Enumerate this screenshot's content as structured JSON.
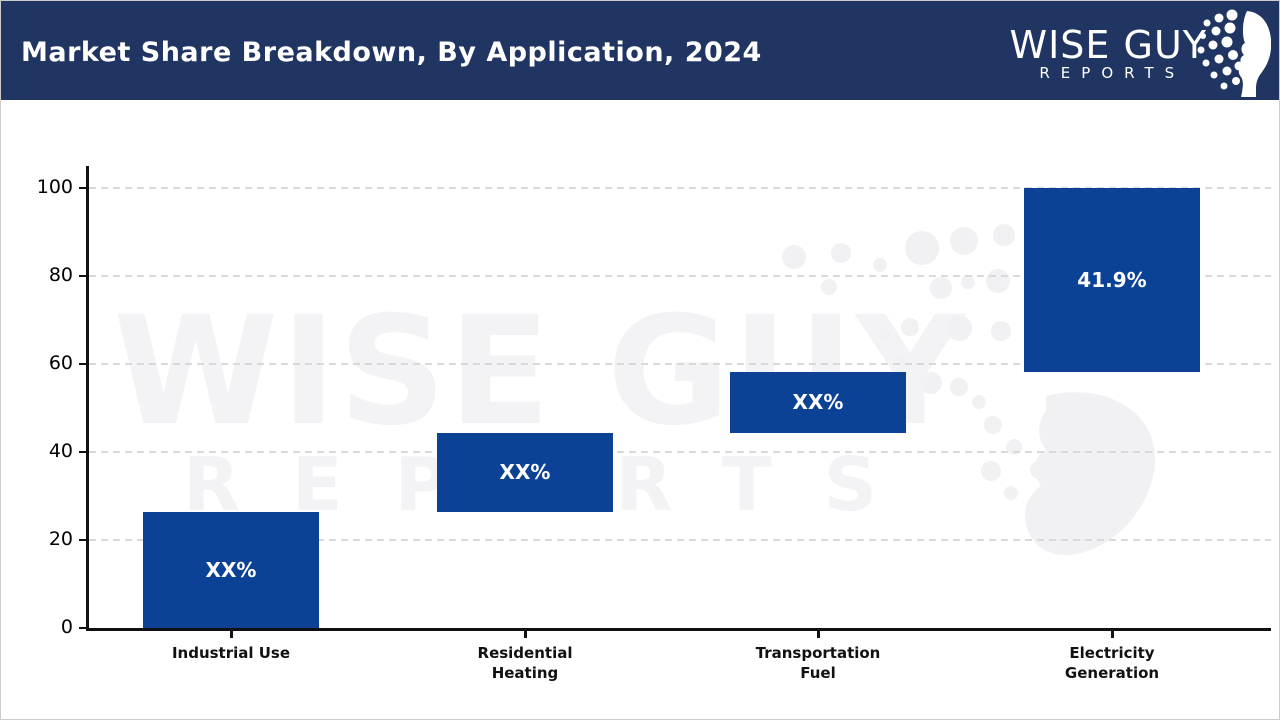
{
  "header": {
    "title": "Market Share Breakdown, By Application, 2024",
    "logo": {
      "line1": "WISE GUY",
      "line2": "REPORTS"
    }
  },
  "watermark": {
    "line1": "WISE GUY",
    "line2": "REPORTS"
  },
  "chart_data": {
    "type": "bar",
    "subtype": "waterfall-floating-bars",
    "title": "Market Share Breakdown, By Application, 2024",
    "categories": [
      "Industrial Use",
      "Residential Heating",
      "Transportation Fuel",
      "Electricity Generation"
    ],
    "bars": [
      {
        "category": "Industrial Use",
        "label_lines": [
          "Industrial Use"
        ],
        "start": 0,
        "end": 26.3,
        "display_label": "XX%"
      },
      {
        "category": "Residential Heating",
        "label_lines": [
          "Residential",
          "Heating"
        ],
        "start": 26.3,
        "end": 44.4,
        "display_label": "XX%"
      },
      {
        "category": "Transportation Fuel",
        "label_lines": [
          "Transportation",
          "Fuel"
        ],
        "start": 44.4,
        "end": 58.1,
        "display_label": "XX%"
      },
      {
        "category": "Electricity Generation",
        "label_lines": [
          "Electricity",
          "Generation"
        ],
        "start": 58.1,
        "end": 100,
        "display_label": "41.9%",
        "value": 41.9
      }
    ],
    "xlabel": "",
    "ylabel": "",
    "yticks": [
      0,
      20,
      40,
      60,
      80,
      100
    ],
    "ylim": [
      0,
      105
    ],
    "grid": "horizontal-dashed",
    "legend": "none"
  },
  "colors": {
    "header_bg": "#203562",
    "bar": "#0b4295",
    "bar_label": "#ffffff",
    "grid": "#d9d9d9",
    "axis": "#111111",
    "watermark": "#f2f2f4",
    "frame_border": "#cccccc",
    "title_text": "#ffffff"
  }
}
